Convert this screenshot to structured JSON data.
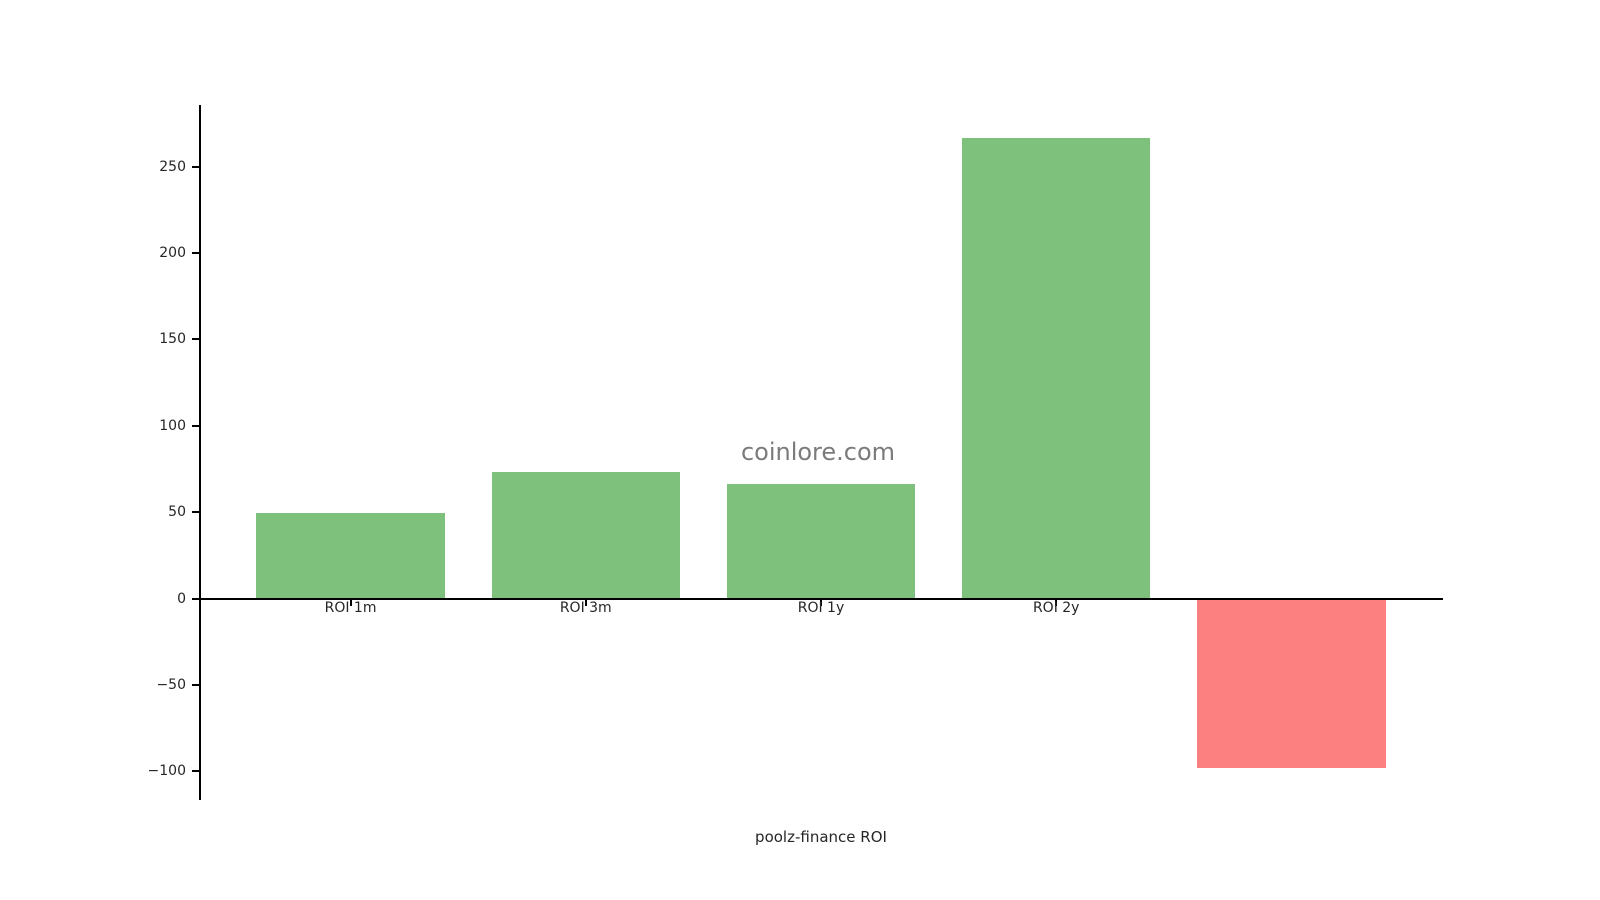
{
  "labels": {
    "watermark": "coinlore.com",
    "x_axis_title": "poolz-finance ROI"
  },
  "style": {
    "background": "#ffffff",
    "axis_color": "#000000",
    "text_color": "#262626",
    "watermark_color": "#7b7b7b",
    "positive_bar_color": "#7dc17d",
    "negative_bar_color": "#fd8080"
  },
  "chart_data": {
    "type": "bar",
    "title": "poolz-finance ROI",
    "watermark": "coinlore.com",
    "categories": [
      "ROI 1m",
      "ROI 3m",
      "ROI 1y",
      "ROI 2y",
      ""
    ],
    "values": [
      49.3,
      73.4,
      66.1,
      266.3,
      -98.3
    ],
    "bar_colors": [
      "#7dc17d",
      "#7dc17d",
      "#7dc17d",
      "#7dc17d",
      "#fd8080"
    ],
    "xlabel": "poolz-finance ROI",
    "ylabel": "",
    "yticks": [
      -100,
      -50,
      0,
      50,
      100,
      150,
      200,
      250
    ],
    "ylim": [
      -116.6,
      285.6
    ],
    "xlim": [
      -0.64,
      4.64
    ],
    "bar_width": 0.8,
    "grid": false,
    "legend_position": "none"
  }
}
